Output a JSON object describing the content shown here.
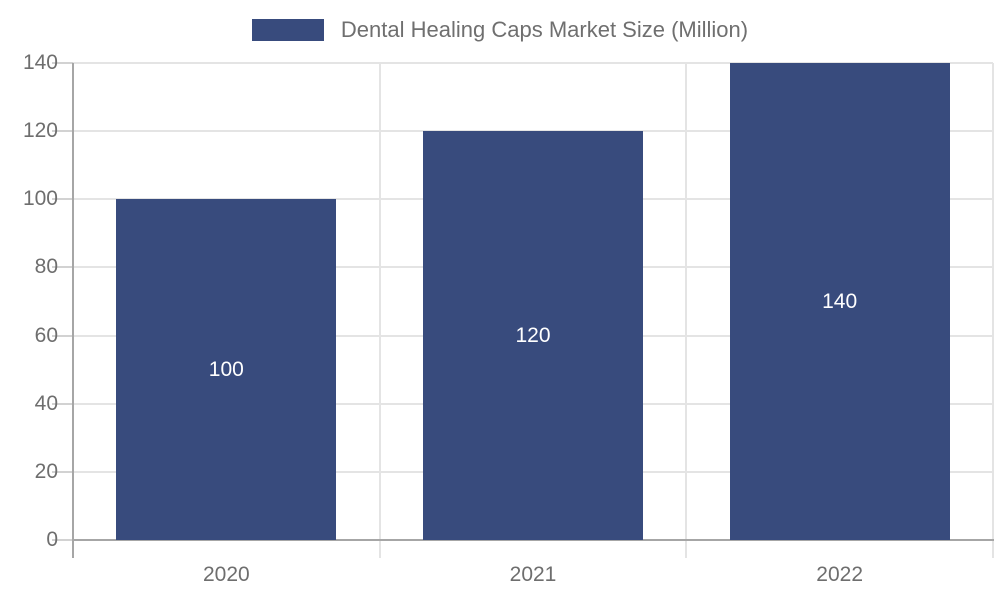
{
  "legend": {
    "label": "Dental Healing Caps Market Size (Million)"
  },
  "chart_data": {
    "type": "bar",
    "title": "Dental Healing Caps Market Size (Million)",
    "categories": [
      "2020",
      "2021",
      "2022"
    ],
    "values": [
      100,
      120,
      140
    ],
    "value_labels": [
      "100",
      "120",
      "140"
    ],
    "xlabel": "",
    "ylabel": "",
    "ylim": [
      0,
      140
    ],
    "yticks": [
      0,
      20,
      40,
      60,
      80,
      100,
      120,
      140
    ],
    "grid": true,
    "legend_position": "top-center",
    "colors": {
      "bar": "#384B7D",
      "value_label": "#FFFFFF",
      "grid": "#E4E4E4",
      "tick": "#D2D2D2",
      "axis": "#A6A6A6",
      "text": "#6E6E6E",
      "legend_text": "#6F6F6F"
    }
  }
}
